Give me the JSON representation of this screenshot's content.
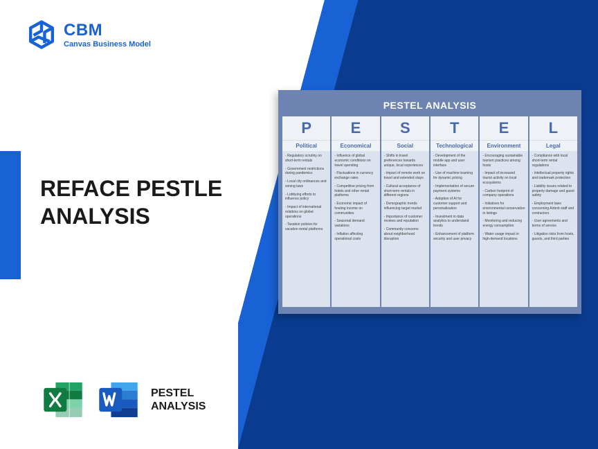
{
  "brand": {
    "name": "CBM",
    "tagline": "Canvas Business Model"
  },
  "title_line1": "REFACE PESTLE",
  "title_line2": "ANALYSIS",
  "footer": {
    "line1": "PESTEL",
    "line2": "ANALYSIS"
  },
  "card": {
    "title": "PESTEL ANALYSIS",
    "columns": [
      {
        "letter": "P",
        "name": "Political",
        "items": [
          "Regulatory scrutiny on short-term rentals",
          "Government restrictions during pandemics",
          "Local city ordinances and zoning laws",
          "Lobbying efforts to influence policy",
          "Impact of international relations on global operations",
          "Taxation policies for vacation rental platforms"
        ]
      },
      {
        "letter": "E",
        "name": "Economical",
        "items": [
          "Influence of global economic conditions on travel spending",
          "Fluctuations in currency exchange rates",
          "Competitive pricing from hotels and other rental platforms",
          "Economic impact of hosting income on communities",
          "Seasonal demand variations",
          "Inflation affecting operational costs"
        ]
      },
      {
        "letter": "S",
        "name": "Social",
        "items": [
          "Shifts in travel preferences towards unique, local experiences",
          "Impact of remote work on travel and extended stays",
          "Cultural acceptance of short-term rentals in different regions",
          "Demographic trends influencing target market",
          "Importance of customer reviews and reputation",
          "Community concerns about neighborhood disruption"
        ]
      },
      {
        "letter": "T",
        "name": "Technological",
        "items": [
          "Development of the mobile app and user interface",
          "Use of machine learning for dynamic pricing",
          "Implementation of secure payment systems",
          "Adoption of AI for customer support and personalization",
          "Investment in data analytics to understand trends",
          "Enhancement of platform security and user privacy"
        ]
      },
      {
        "letter": "E",
        "name": "Environment",
        "items": [
          "Encouraging sustainable tourism practices among hosts",
          "Impact of increased tourist activity on local ecosystems",
          "Carbon footprint of company operations",
          "Initiatives for environmental conservation in listings",
          "Monitoring and reducing energy consumption",
          "Water usage impact in high-demand locations"
        ]
      },
      {
        "letter": "L",
        "name": "Legal",
        "items": [
          "Compliance with local short-term rental regulations",
          "Intellectual property rights and trademark protection",
          "Liability issues related to property damage and guest safety",
          "Employment laws concerning Airbnb staff and contractors",
          "User agreements and terms of service",
          "Litigation risks from hosts, guests, and third parties"
        ]
      }
    ]
  },
  "colors": {
    "brand_blue": "#1862d6",
    "dark_blue": "#0a3b8f",
    "card_bg": "#6d83b1",
    "col_header_bg": "#eef1f6",
    "col_body_bg": "#dde3ee",
    "header_text": "#4a6aa5",
    "excel_green": "#1d7044",
    "word_blue": "#2b579a"
  }
}
